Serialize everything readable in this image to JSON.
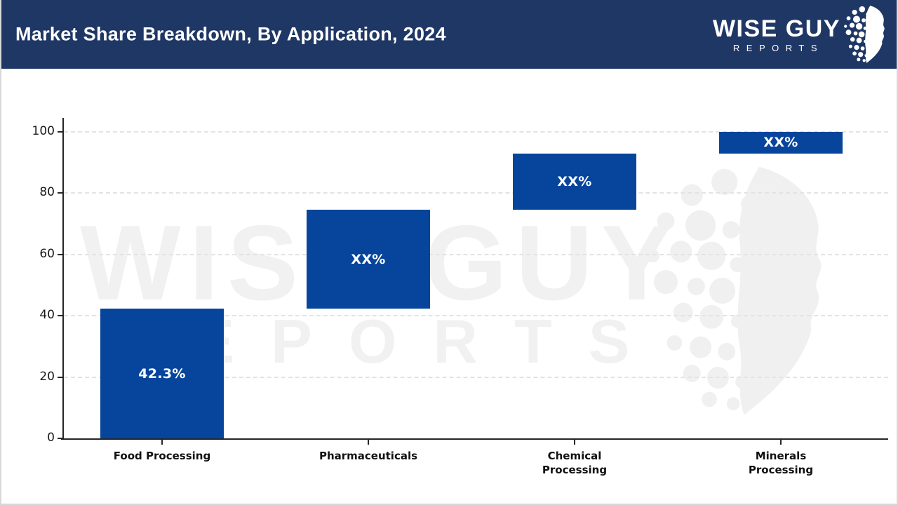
{
  "header": {
    "title": "Market Share Breakdown, By Application, 2024",
    "bg_color": "#1F3765",
    "logo": {
      "line1": "WISE GUY",
      "line2": "REPORTS"
    }
  },
  "watermark": {
    "line1": "WISE GUY",
    "line2": "REPORTS"
  },
  "chart_data": {
    "type": "bar",
    "subtype": "waterfall-stacked",
    "title": "Market Share Breakdown, By Application, 2024",
    "categories": [
      [
        "Food Processing"
      ],
      [
        "Pharmaceuticals"
      ],
      [
        "Chemical",
        "Processing"
      ],
      [
        "Minerals",
        "Processing"
      ]
    ],
    "bars": [
      {
        "category": "Food Processing",
        "start": 0,
        "end": 42.3,
        "label": "42.3%"
      },
      {
        "category": "Pharmaceuticals",
        "start": 42.3,
        "end": 74.6,
        "label": "XX%"
      },
      {
        "category": "Chemical Processing",
        "start": 74.6,
        "end": 93.0,
        "label": "XX%"
      },
      {
        "category": "Minerals Processing",
        "start": 93.0,
        "end": 100.0,
        "label": "XX%"
      }
    ],
    "bar_color": "#07459C",
    "value_label_color": "#ffffff",
    "ylim": [
      0,
      100
    ],
    "yticks": [
      0,
      20,
      40,
      60,
      80,
      100
    ],
    "grid": "dashed-horizontal",
    "legend": null
  }
}
